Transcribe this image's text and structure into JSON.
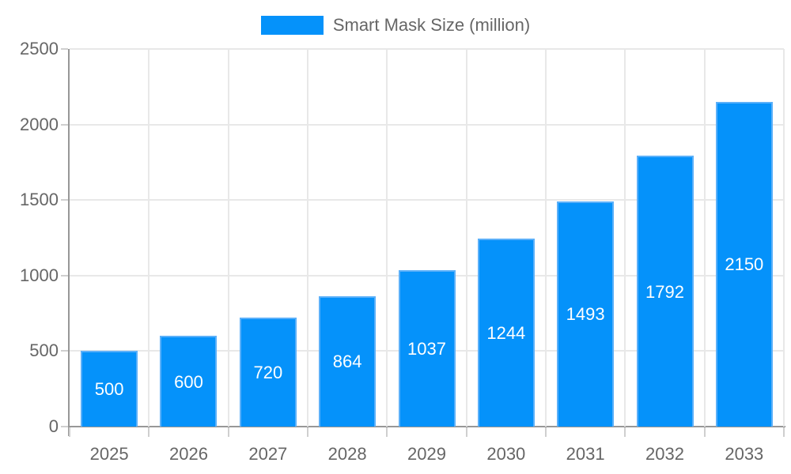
{
  "chart_data": {
    "type": "bar",
    "title": "Smart Mask Size (million)",
    "categories": [
      "2025",
      "2026",
      "2027",
      "2028",
      "2029",
      "2030",
      "2031",
      "2032",
      "2033"
    ],
    "values": [
      500,
      600,
      720,
      864,
      1037,
      1244,
      1493,
      1792,
      2150
    ],
    "xlabel": "",
    "ylabel": "",
    "ylim": [
      0,
      2500
    ],
    "yticks": [
      0,
      500,
      1000,
      1500,
      2000,
      2500
    ],
    "grid": true,
    "legend_position": "top",
    "value_labels_position": "center-inside-bar",
    "colors": {
      "bar": "#0592fa",
      "bar_border": "#5bb0f9",
      "value_label": "#ffffff",
      "axis_text": "#666666",
      "axis_line": "#979797",
      "gridline": "#e8e8e8",
      "tick": "#cfcfcf",
      "background": "#ffffff"
    }
  }
}
